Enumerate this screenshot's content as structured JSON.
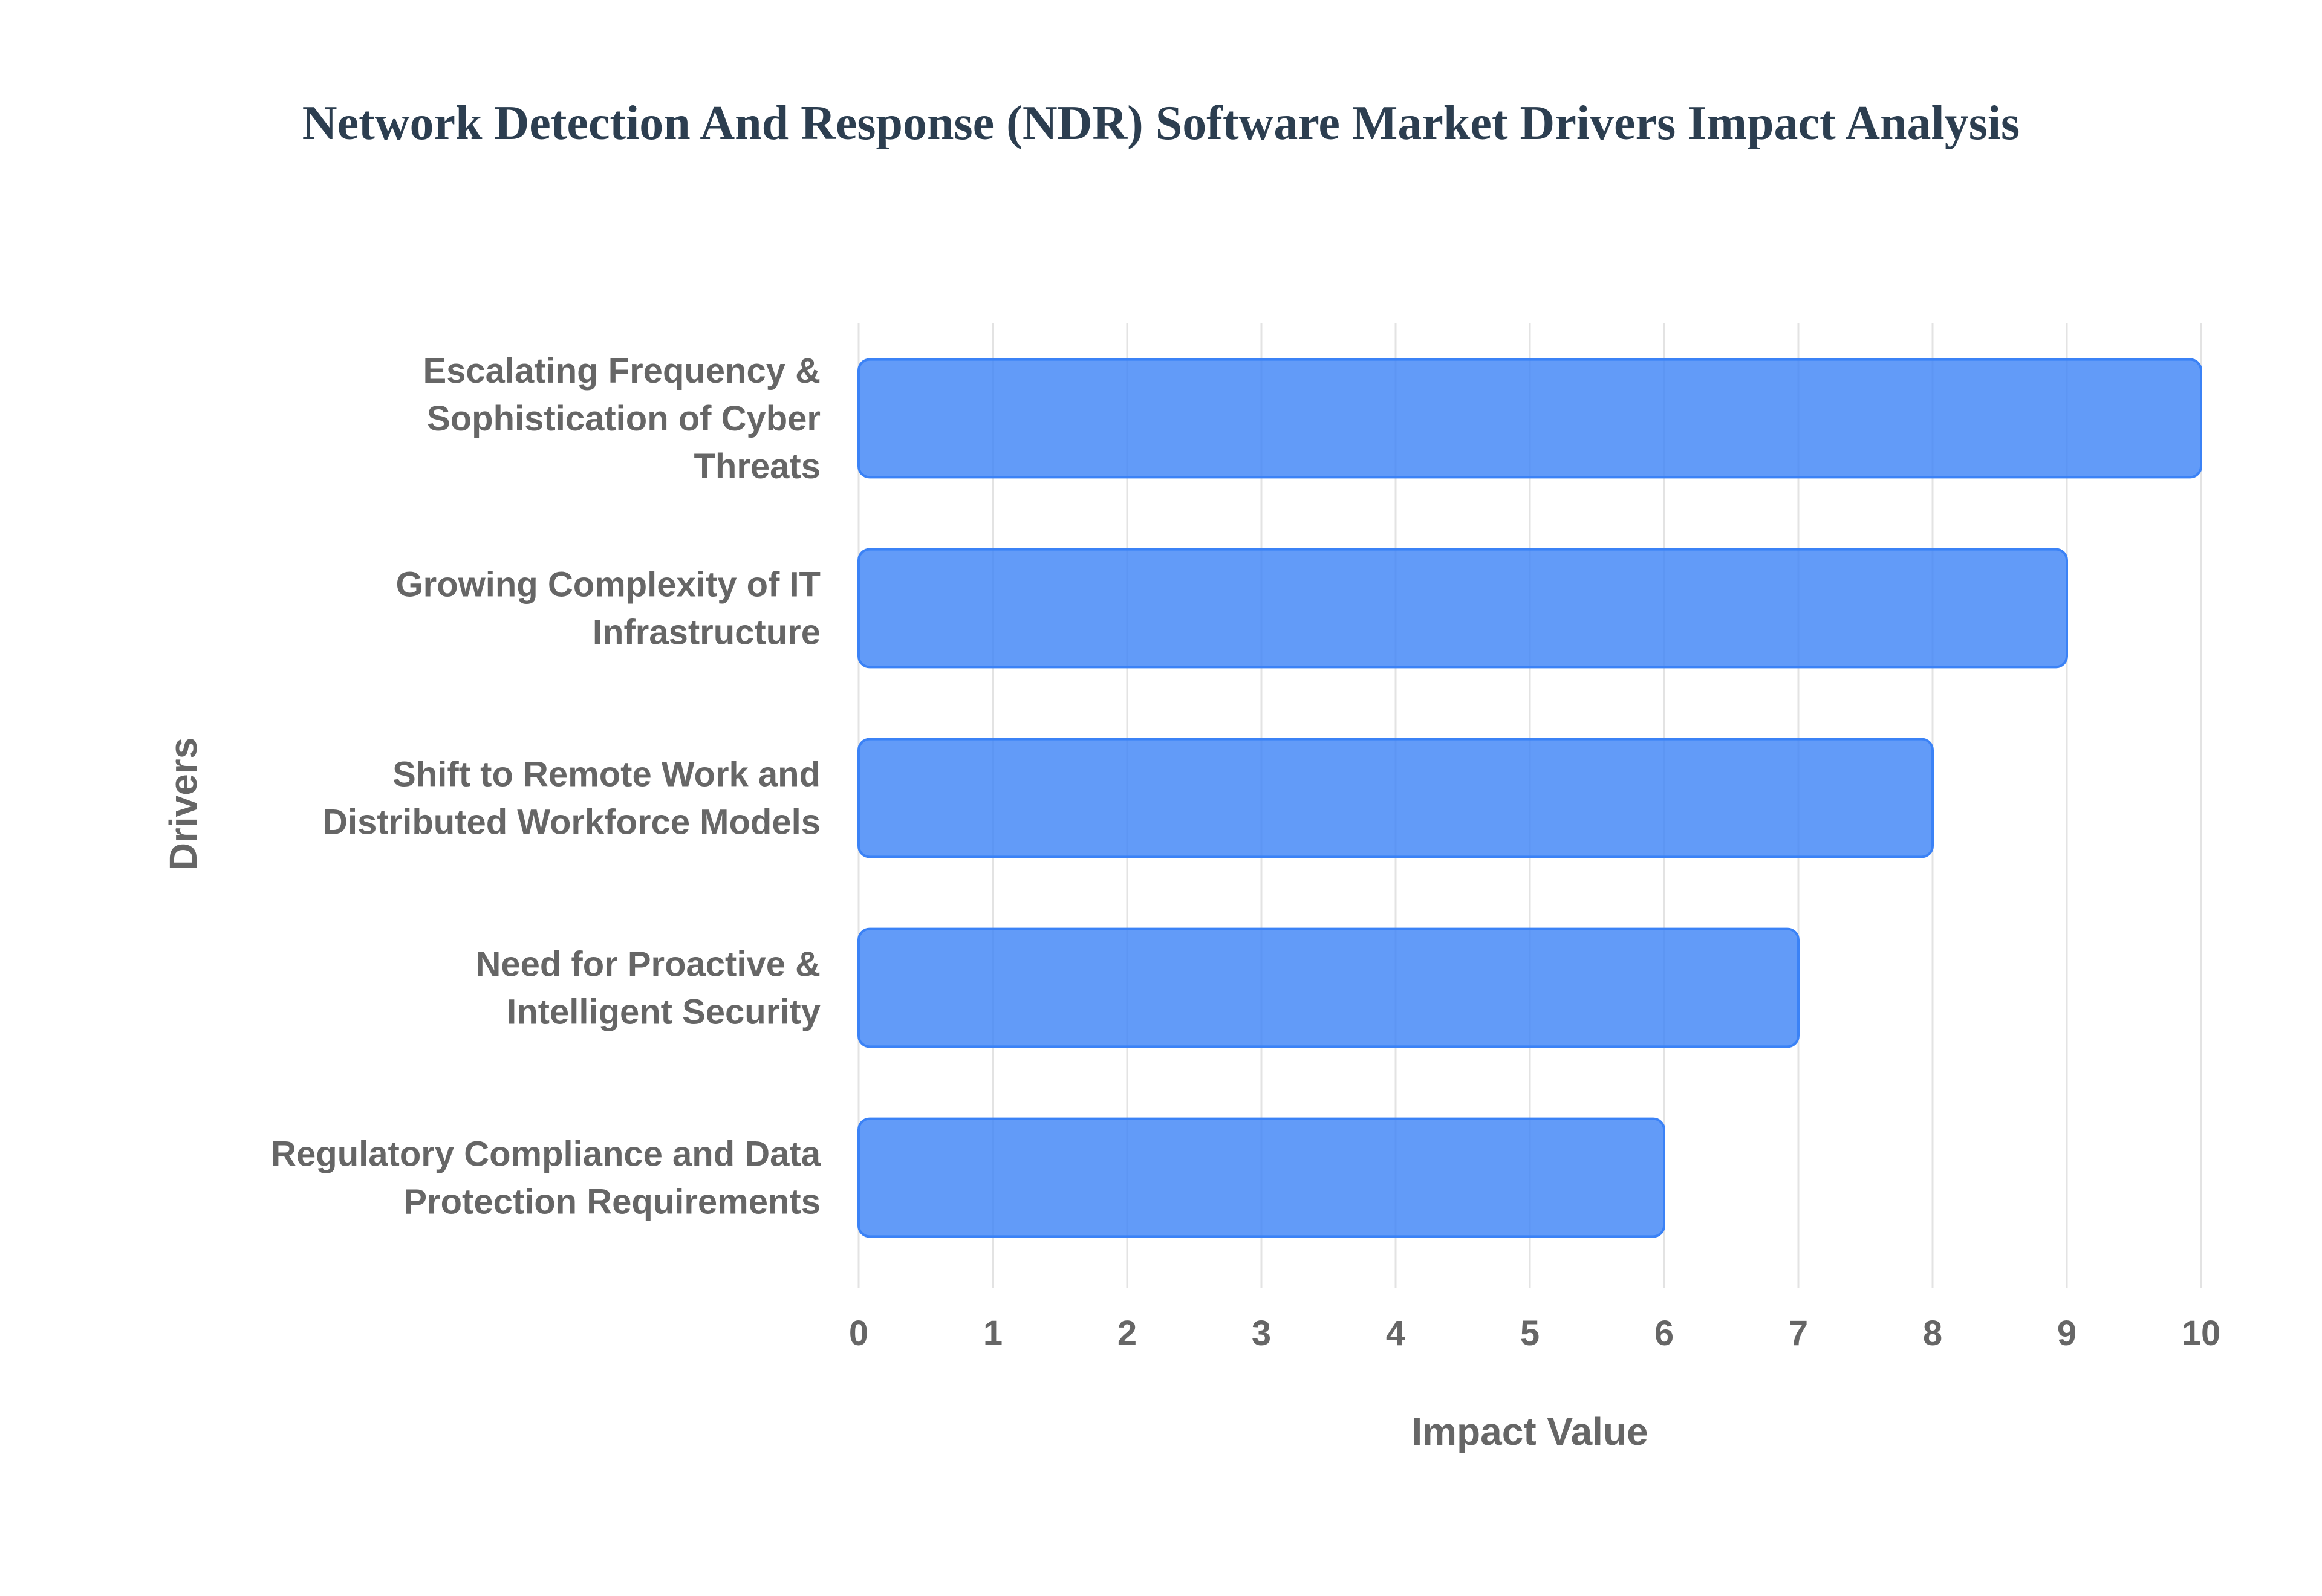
{
  "chart_data": {
    "type": "bar",
    "orientation": "horizontal",
    "title": "Network Detection And Response (NDR) Software Market Drivers Impact Analysis",
    "xlabel": "Impact Value",
    "ylabel": "Drivers",
    "categories": [
      [
        "Escalating Frequency &",
        "Sophistication of Cyber",
        "Threats"
      ],
      [
        "Growing Complexity of IT",
        "Infrastructure"
      ],
      [
        "Shift to Remote Work and",
        "Distributed Workforce Models"
      ],
      [
        "Need for Proactive &",
        "Intelligent Security"
      ],
      [
        "Regulatory Compliance and Data",
        "Protection Requirements"
      ]
    ],
    "values": [
      10,
      9,
      8,
      7,
      6
    ],
    "xlim": [
      0,
      10
    ],
    "xticks": [
      "0",
      "1",
      "2",
      "3",
      "4",
      "5",
      "6",
      "7",
      "8",
      "9",
      "10"
    ],
    "grid": true,
    "legend": "none",
    "colors": {
      "bar_fill": "#3b82f6",
      "bar_border": "#3b82f6",
      "title": "#2c3e50",
      "labels": "#666666"
    }
  }
}
